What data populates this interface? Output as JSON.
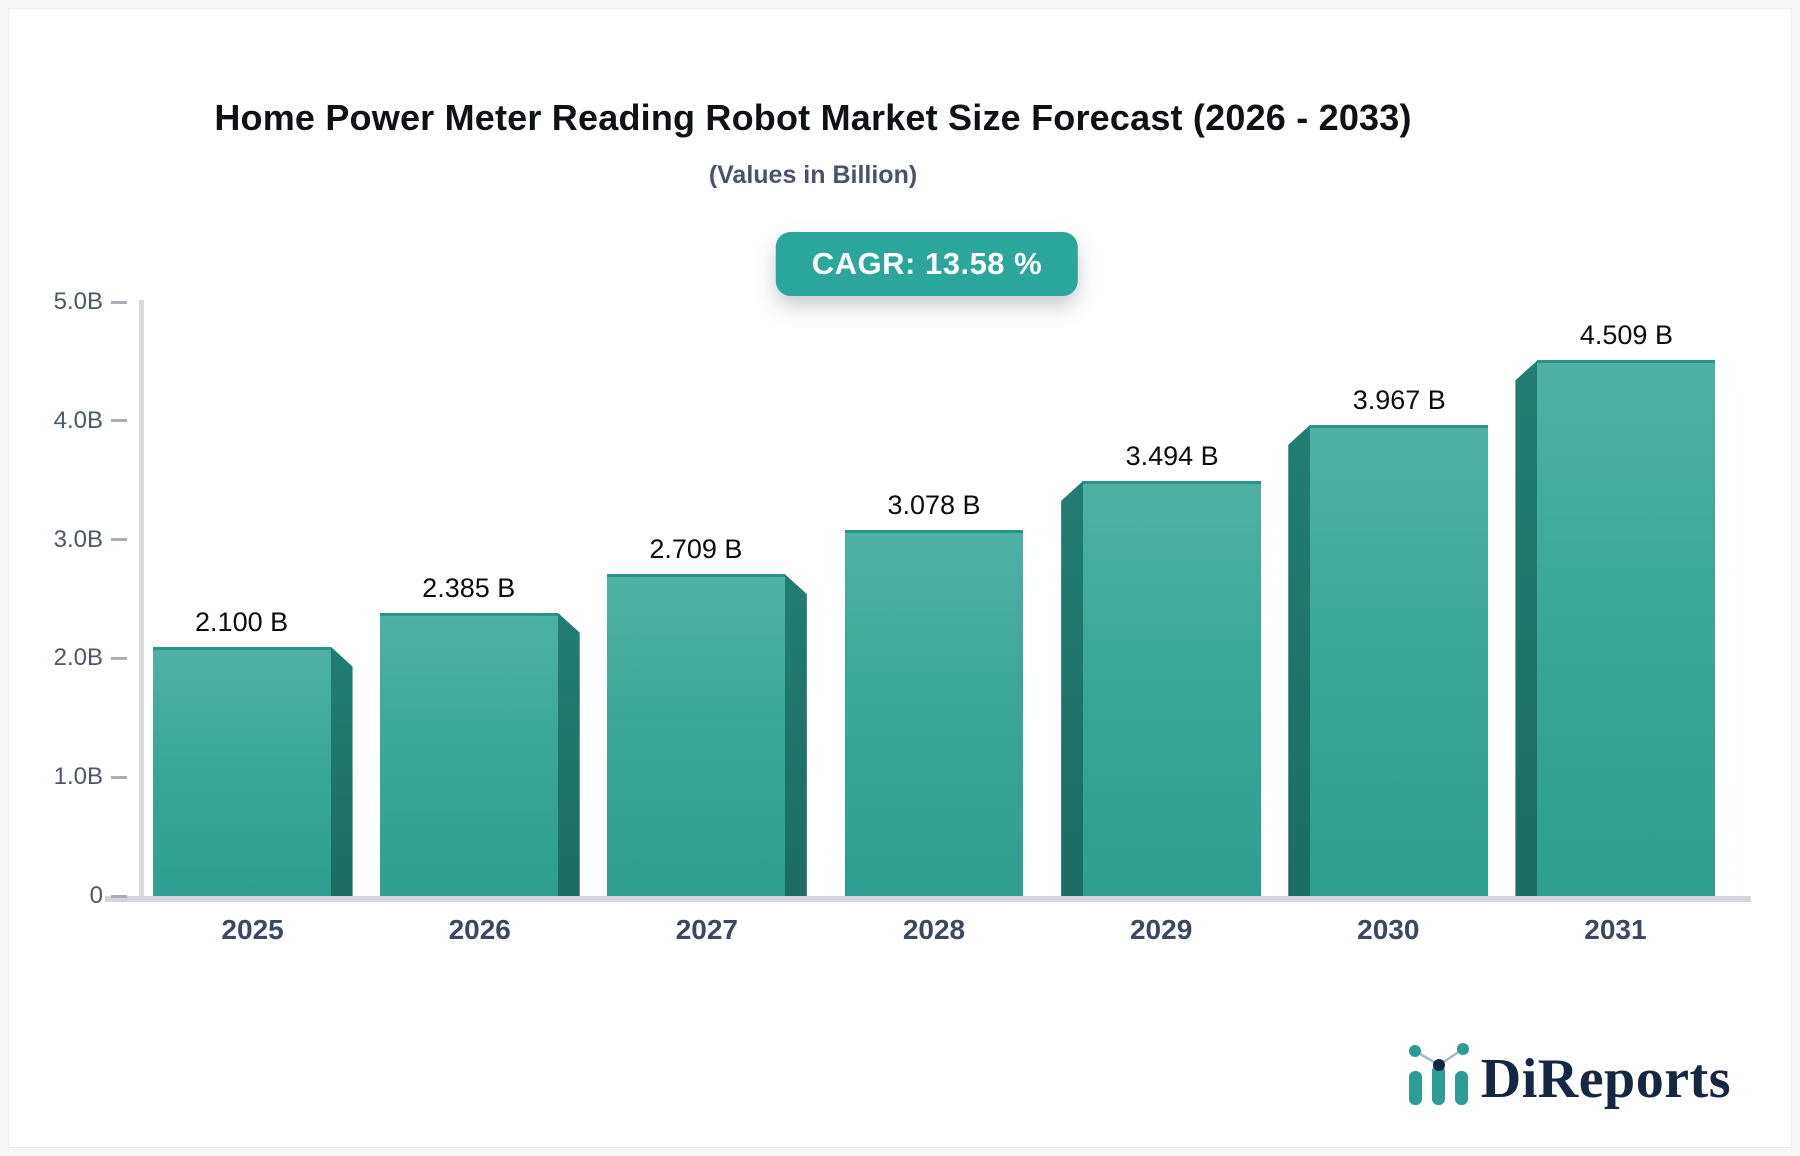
{
  "title": "Home Power Meter Reading Robot Market Size Forecast (2026 - 2033)",
  "subtitle": "(Values in Billion)",
  "badge": {
    "label": "CAGR: 13.58 %"
  },
  "chart_data": {
    "type": "bar",
    "title": "Home Power Meter Reading Robot Market Size Forecast (2026 - 2033)",
    "subtitle": "(Values in Billion)",
    "cagr_percent": 13.58,
    "categories": [
      "2025",
      "2026",
      "2027",
      "2028",
      "2029",
      "2030",
      "2031"
    ],
    "values": [
      2.1,
      2.385,
      2.709,
      3.078,
      3.494,
      3.967,
      4.509
    ],
    "value_labels": [
      "2.100 B",
      "2.385 B",
      "2.709 B",
      "3.078 B",
      "3.494 B",
      "3.967 B",
      "4.509 B"
    ],
    "xlabel": "",
    "ylabel": "",
    "ylim": [
      0,
      5
    ],
    "y_ticks": [
      "0",
      "1.0B",
      "2.0B",
      "3.0B",
      "4.0B",
      "5.0B"
    ],
    "grid": false,
    "legend": "none",
    "bar_color": "#35a597",
    "bar_side_color": "#1f776c"
  },
  "colors": {
    "accent_teal": "#2aa69a",
    "title_text": "#0e1216",
    "axis_text": "#4c5868",
    "year_text": "#3b4860",
    "logo_navy": "#152741",
    "logo_teal": "#2b9d95"
  },
  "logo": {
    "text": "DiReports",
    "icon": "bar-chart-trend-icon"
  }
}
